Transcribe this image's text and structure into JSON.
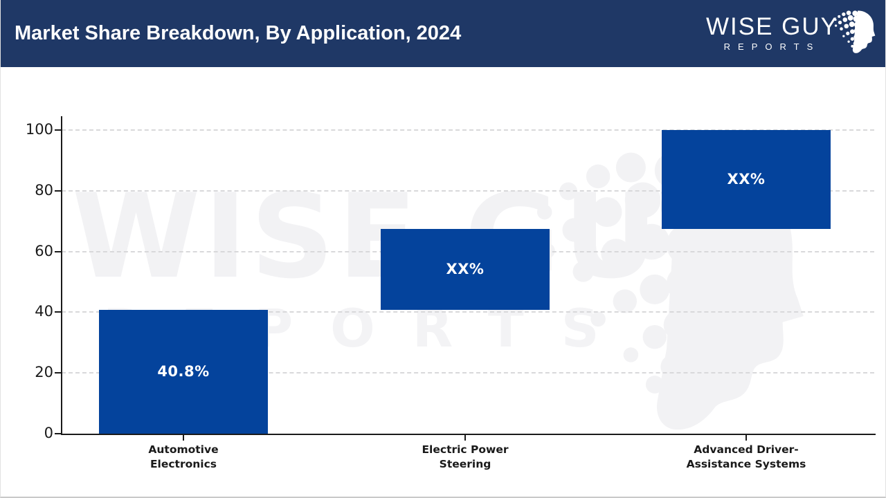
{
  "header": {
    "title": "Market Share Breakdown, By Application, 2024",
    "brand": {
      "name": "WISE GUY",
      "sub": "REPORTS"
    },
    "bg_color": "#1f3866"
  },
  "watermark": {
    "name": "WISE GUY",
    "sub": "REPORTS"
  },
  "chart_data": {
    "type": "bar",
    "subtype": "floating-waterfall",
    "title": "Market Share Breakdown, By Application, 2024",
    "categories": [
      [
        "Automotive",
        "Electronics"
      ],
      [
        "Electric Power",
        "Steering"
      ],
      [
        "Advanced Driver-",
        "Assistance Systems"
      ]
    ],
    "series": [
      {
        "name": "Market share (%)",
        "segments": [
          {
            "category": "Automotive Electronics",
            "start": 0,
            "end": 40.8,
            "label": "40.8%"
          },
          {
            "category": "Electric Power Steering",
            "start": 40.8,
            "end": 67.5,
            "label": "XX%"
          },
          {
            "category": "Advanced Driver-Assistance Systems",
            "start": 67.5,
            "end": 100,
            "label": "XX%"
          }
        ]
      }
    ],
    "yticks": [
      0,
      20,
      40,
      60,
      80,
      100
    ],
    "ylim": [
      0,
      105
    ],
    "grid": "horizontal-dashed",
    "legend": "none",
    "bar_color": "#04439c",
    "bar_label_color": "#ffffff",
    "axis_color": "#1a1a1a",
    "xlabel": "",
    "ylabel": ""
  }
}
